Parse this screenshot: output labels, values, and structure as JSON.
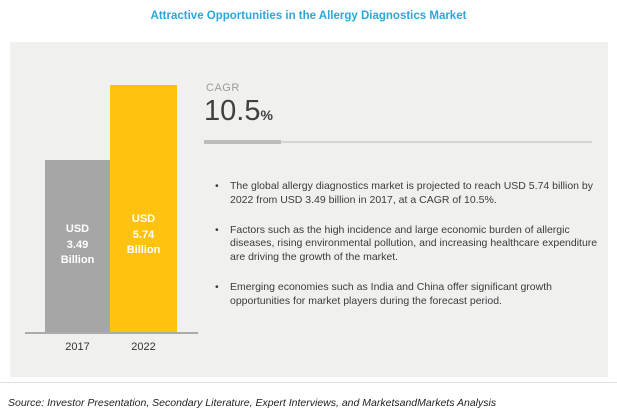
{
  "title": "Attractive Opportunities in the Allergy Diagnostics Market",
  "chart_data": {
    "type": "bar",
    "title": "Attractive Opportunities in the Allergy Diagnostics Market",
    "categories": [
      "2017",
      "2022"
    ],
    "values": [
      3.49,
      5.74
    ],
    "unit": "USD Billion",
    "bar_labels": [
      "USD 3.49 Billion",
      "USD 5.74 Billion"
    ],
    "bar_colors": [
      "#A6A6A6",
      "#FFC20E"
    ],
    "xlabel": "",
    "ylabel": "",
    "grid": false,
    "legend": false,
    "annotations": {
      "cagr": "10.5%"
    }
  },
  "bars": [
    {
      "year": "2017",
      "label_usd": "USD",
      "label_value": "3.49",
      "label_unit": "Billion"
    },
    {
      "year": "2022",
      "label_usd": "USD",
      "label_value": "5.74",
      "label_unit": "Billion"
    }
  ],
  "cagr": {
    "label": "CAGR",
    "value": "10.5",
    "percent": "%"
  },
  "bullets": [
    "The global allergy diagnostics market is projected to reach USD 5.74 billion by 2022 from USD 3.49 billion in 2017, at a CAGR of 10.5%.",
    "Factors such as the high incidence and large economic burden of allergic diseases, rising environmental pollution, and increasing healthcare expenditure are driving the growth of the market.",
    "Emerging economies such as India and China offer significant growth opportunities for market players during the forecast period."
  ],
  "source": "Source: Investor Presentation, Secondary Literature, Expert Interviews, and MarketsandMarkets Analysis",
  "colors": {
    "title_blue": "#2BA7DB",
    "bar_2017_gray": "#A6A6A6",
    "bar_2022_yellow": "#FFC20E",
    "panel_background": "#F0F0EF",
    "text_dark": "#3B3B3B",
    "cagr_label_gray": "#9B9B9B"
  }
}
